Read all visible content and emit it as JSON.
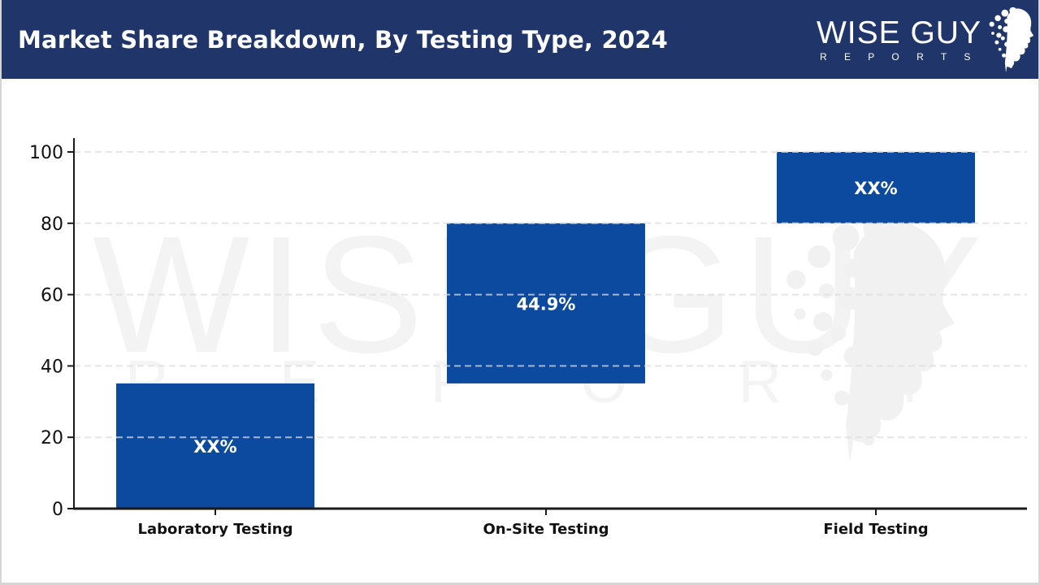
{
  "header": {
    "title": "Market Share Breakdown, By Testing Type, 2024",
    "logo": {
      "name": "WISE GUY",
      "subtext": "R E P O R T S"
    }
  },
  "watermark": {
    "line1": "WISE GUY",
    "line2": "R E P O R T S"
  },
  "chart_data": {
    "type": "bar",
    "subtype": "waterfall",
    "title": "Market Share Breakdown, By Testing Type, 2024",
    "categories": [
      "Laboratory Testing",
      "On-Site Testing",
      "Field Testing"
    ],
    "segments": [
      {
        "category": "Laboratory Testing",
        "start": 0,
        "end": 35.1,
        "label": "XX%"
      },
      {
        "category": "On-Site Testing",
        "start": 35.1,
        "end": 80,
        "label": "44.9%"
      },
      {
        "category": "Field Testing",
        "start": 80,
        "end": 100,
        "label": "XX%"
      }
    ],
    "values": [
      35.1,
      44.9,
      20
    ],
    "xlabel": "",
    "ylabel": "",
    "ylim": [
      0,
      100
    ],
    "yticks": [
      0,
      20,
      40,
      60,
      80,
      100
    ],
    "grid": "dashed-horizontal",
    "legend": "none",
    "bar_color": "#0b4a9f",
    "bar_label_color": "#ffffff"
  },
  "colors": {
    "header_bg": "#20356a",
    "bar": "#0b4a9f",
    "axis": "#1a1a1a",
    "gridline": "#dcdcdc",
    "tick_label": "#111111",
    "watermark": "#f3f3f3",
    "page_border": "#d6d6d6"
  }
}
